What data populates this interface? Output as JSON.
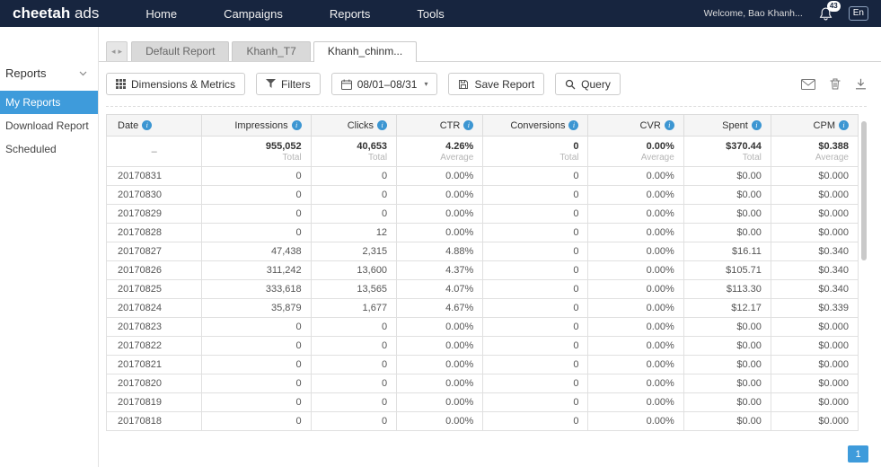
{
  "navbar": {
    "brand_bold": "cheetah",
    "brand_light": " ads",
    "items": [
      "Home",
      "Campaigns",
      "Reports",
      "Tools"
    ],
    "welcome": "Welcome,  Bao Khanh...",
    "notification_count": "43",
    "language": "En"
  },
  "sidebar": {
    "section_label": "Reports",
    "items": [
      {
        "label": "My Reports",
        "active": true
      },
      {
        "label": "Download Report",
        "active": false
      },
      {
        "label": "Scheduled",
        "active": false
      }
    ]
  },
  "tabs": [
    {
      "label": "Default Report",
      "active": false
    },
    {
      "label": "Khanh_T7",
      "active": false
    },
    {
      "label": "Khanh_chinm...",
      "active": true
    }
  ],
  "toolbar": {
    "dimensions_metrics_label": "Dimensions & Metrics",
    "filters_label": "Filters",
    "date_range_label": "08/01–08/31",
    "save_report_label": "Save Report",
    "query_label": "Query"
  },
  "table": {
    "columns": [
      "Date",
      "Impressions",
      "Clicks",
      "CTR",
      "Conversions",
      "CVR",
      "Spent",
      "CPM"
    ],
    "summary": {
      "date": "–",
      "values": [
        "955,052",
        "40,653",
        "4.26%",
        "0",
        "0.00%",
        "$370.44",
        "$0.388"
      ],
      "sublabels": [
        "Total",
        "Total",
        "Average",
        "Total",
        "Average",
        "Total",
        "Average"
      ]
    },
    "rows": [
      {
        "date": "20170831",
        "values": [
          "0",
          "0",
          "0.00%",
          "0",
          "0.00%",
          "$0.00",
          "$0.000"
        ]
      },
      {
        "date": "20170830",
        "values": [
          "0",
          "0",
          "0.00%",
          "0",
          "0.00%",
          "$0.00",
          "$0.000"
        ]
      },
      {
        "date": "20170829",
        "values": [
          "0",
          "0",
          "0.00%",
          "0",
          "0.00%",
          "$0.00",
          "$0.000"
        ]
      },
      {
        "date": "20170828",
        "values": [
          "0",
          "12",
          "0.00%",
          "0",
          "0.00%",
          "$0.00",
          "$0.000"
        ]
      },
      {
        "date": "20170827",
        "values": [
          "47,438",
          "2,315",
          "4.88%",
          "0",
          "0.00%",
          "$16.11",
          "$0.340"
        ]
      },
      {
        "date": "20170826",
        "values": [
          "311,242",
          "13,600",
          "4.37%",
          "0",
          "0.00%",
          "$105.71",
          "$0.340"
        ]
      },
      {
        "date": "20170825",
        "values": [
          "333,618",
          "13,565",
          "4.07%",
          "0",
          "0.00%",
          "$113.30",
          "$0.340"
        ]
      },
      {
        "date": "20170824",
        "values": [
          "35,879",
          "1,677",
          "4.67%",
          "0",
          "0.00%",
          "$12.17",
          "$0.339"
        ]
      },
      {
        "date": "20170823",
        "values": [
          "0",
          "0",
          "0.00%",
          "0",
          "0.00%",
          "$0.00",
          "$0.000"
        ]
      },
      {
        "date": "20170822",
        "values": [
          "0",
          "0",
          "0.00%",
          "0",
          "0.00%",
          "$0.00",
          "$0.000"
        ]
      },
      {
        "date": "20170821",
        "values": [
          "0",
          "0",
          "0.00%",
          "0",
          "0.00%",
          "$0.00",
          "$0.000"
        ]
      },
      {
        "date": "20170820",
        "values": [
          "0",
          "0",
          "0.00%",
          "0",
          "0.00%",
          "$0.00",
          "$0.000"
        ]
      },
      {
        "date": "20170819",
        "values": [
          "0",
          "0",
          "0.00%",
          "0",
          "0.00%",
          "$0.00",
          "$0.000"
        ]
      },
      {
        "date": "20170818",
        "values": [
          "0",
          "0",
          "0.00%",
          "0",
          "0.00%",
          "$0.00",
          "$0.000"
        ]
      }
    ]
  },
  "pagination": {
    "current_page": "1"
  },
  "colors": {
    "navbar_bg": "#17253F",
    "accent_blue": "#3E9BDB",
    "info_icon_bg": "#3C96D2"
  }
}
